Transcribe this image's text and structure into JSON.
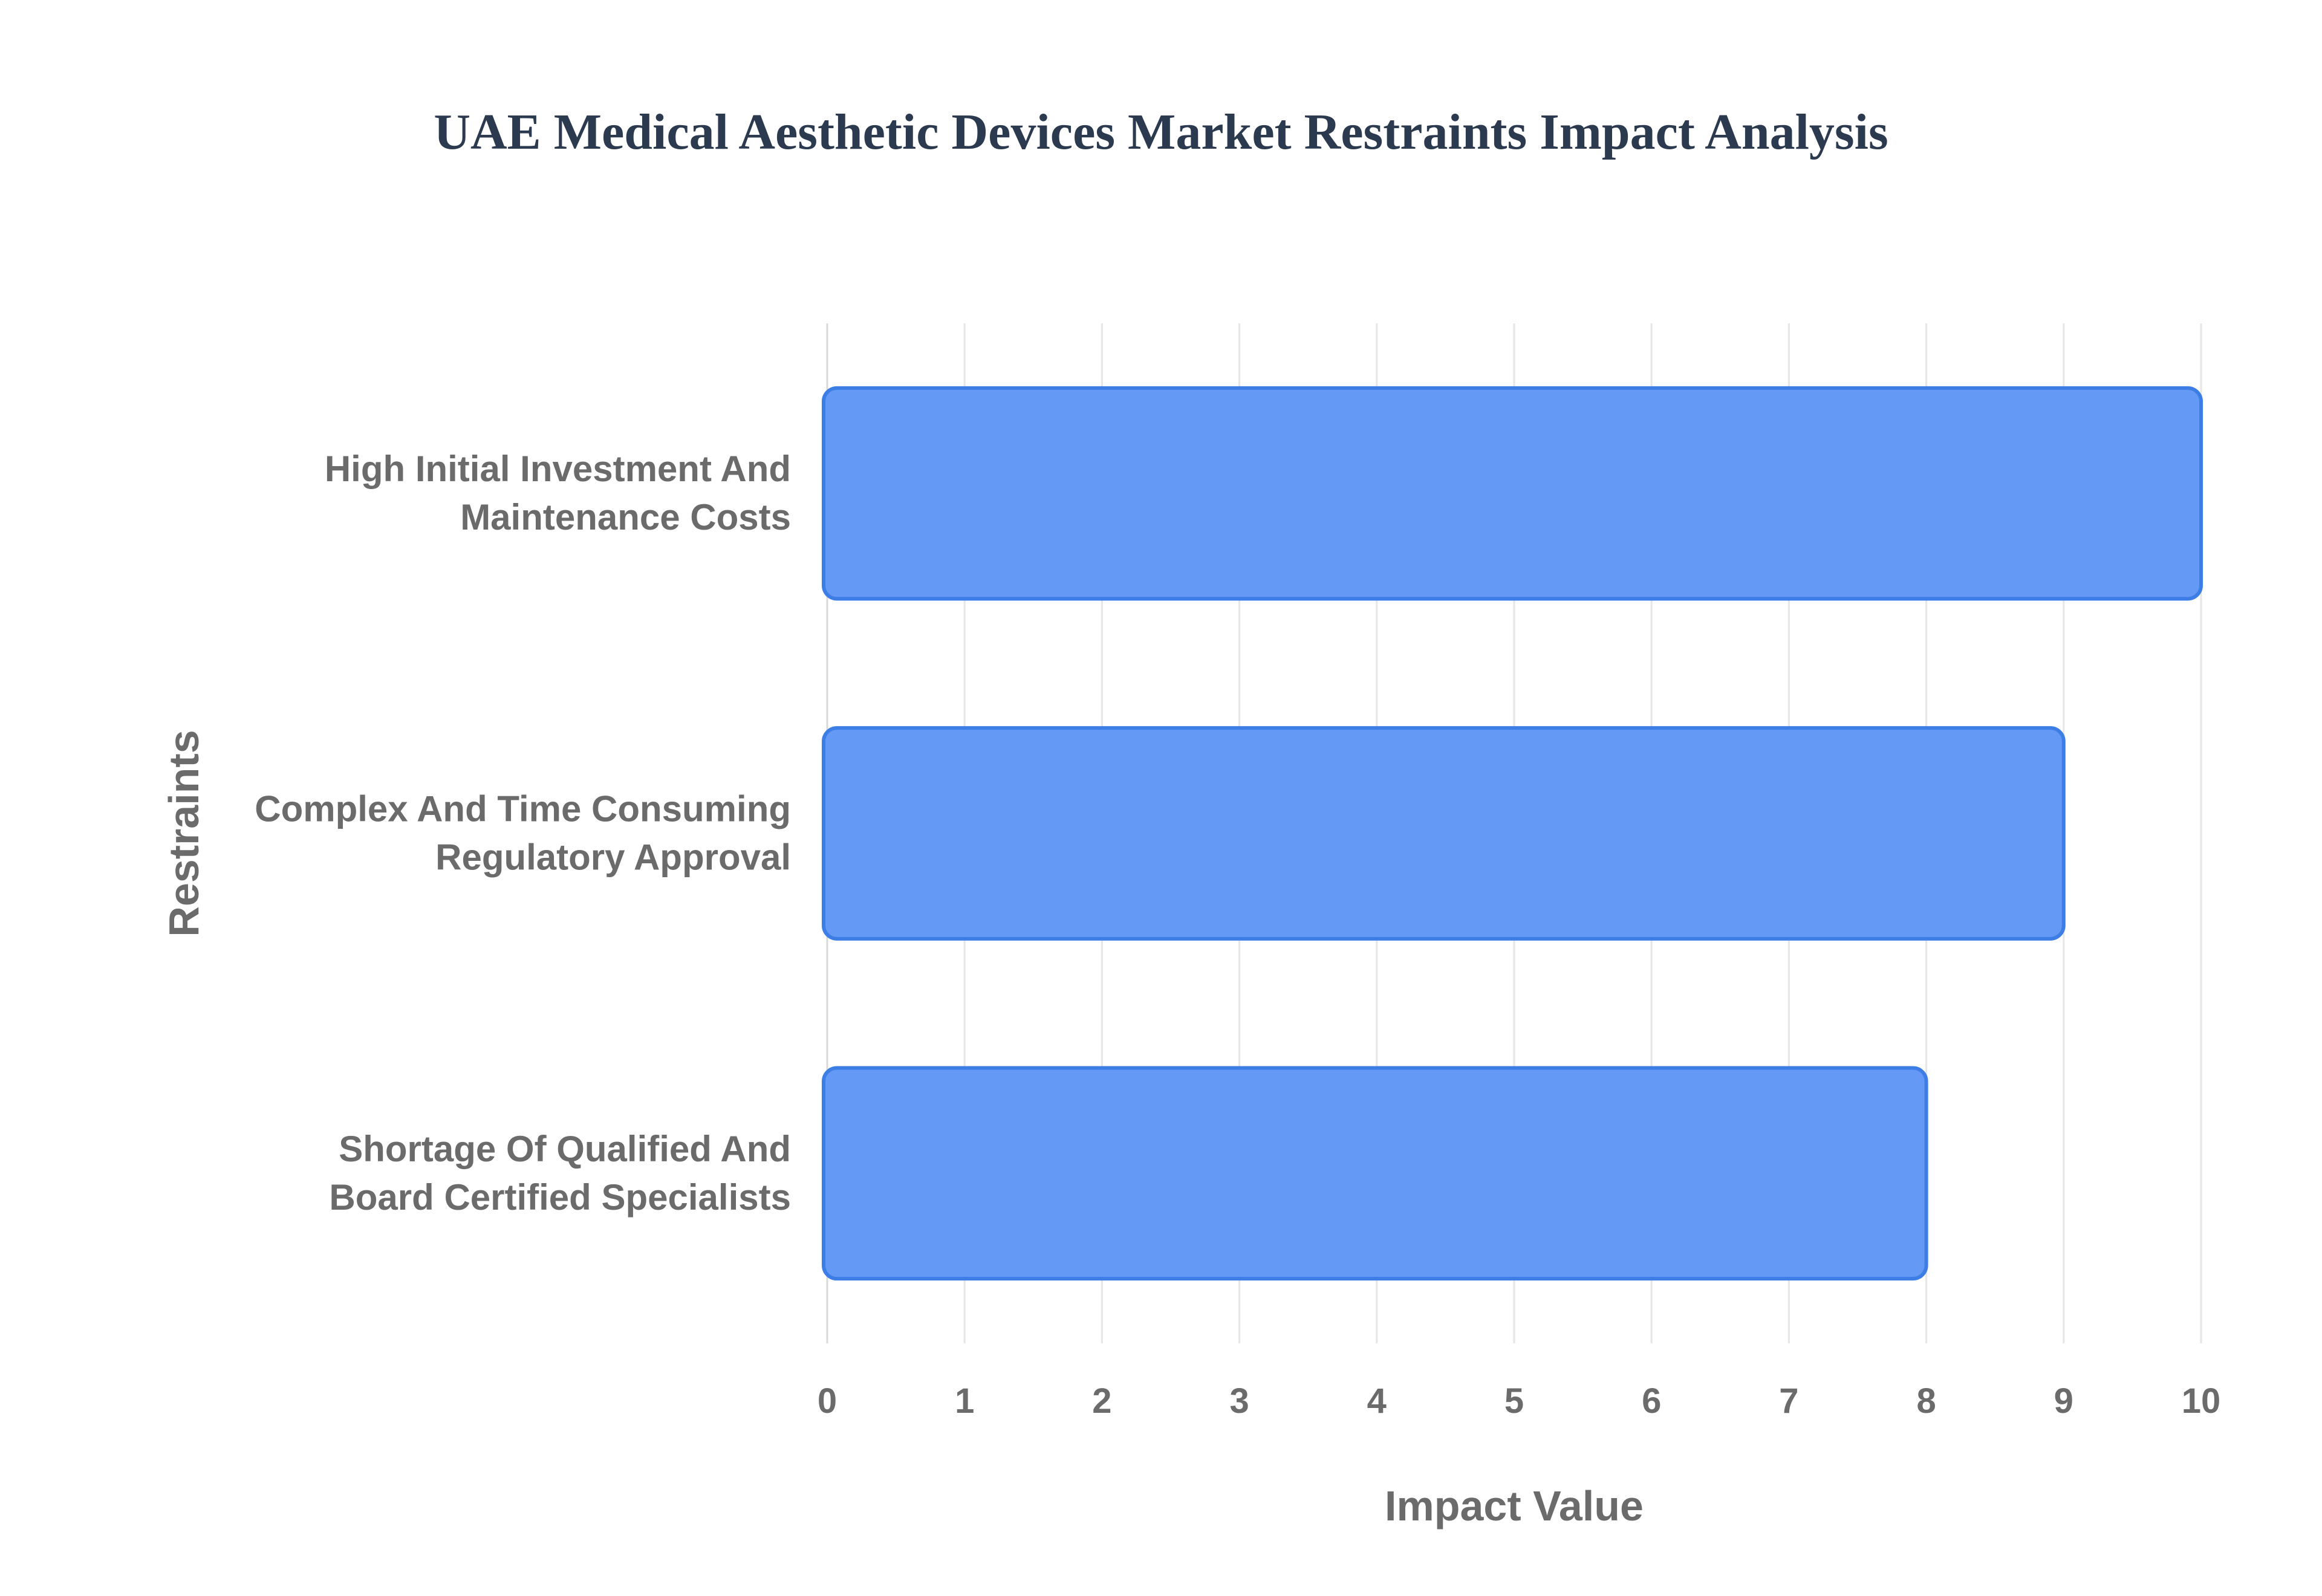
{
  "chart_data": {
    "type": "bar",
    "orientation": "horizontal",
    "title": "UAE Medical Aesthetic Devices Market Restraints Impact Analysis",
    "xlabel": "Impact Value",
    "ylabel": "Restraints",
    "categories": [
      [
        "High Initial Investment And",
        "Maintenance Costs"
      ],
      [
        "Complex And Time Consuming",
        "Regulatory Approval"
      ],
      [
        "Shortage Of Qualified And",
        "Board Certified Specialists"
      ]
    ],
    "values": [
      10,
      9,
      8
    ],
    "xlim": [
      0,
      10
    ],
    "xticks": [
      "0",
      "1",
      "2",
      "3",
      "4",
      "5",
      "6",
      "7",
      "8",
      "9",
      "10"
    ],
    "grid": true,
    "legend": "none",
    "colors": {
      "bar_fill": "#6499f5",
      "bar_stroke": "#3d7ee6",
      "title": "#2b3a4e",
      "text": "#6b6b6b",
      "grid": "#e6e6e6"
    }
  }
}
